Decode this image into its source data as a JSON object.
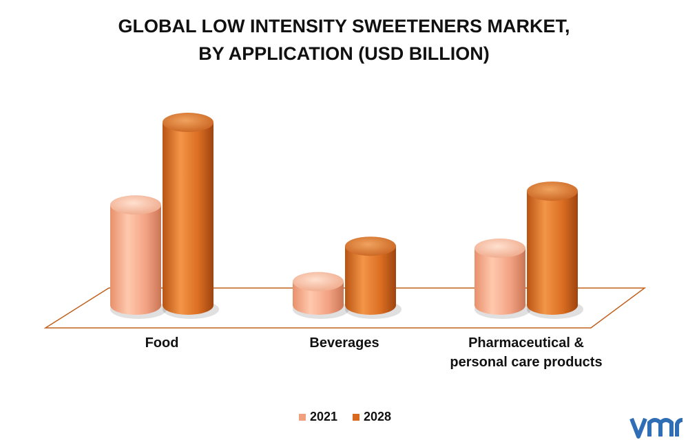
{
  "chart_data": {
    "type": "bar",
    "title_lines": [
      "GLOBAL LOW INTENSITY SWEETENERS MARKET,",
      "BY APPLICATION (USD BILLION)"
    ],
    "categories": [
      [
        "Food"
      ],
      [
        "Beverages"
      ],
      [
        "Pharmaceutical &",
        "personal care products"
      ]
    ],
    "series": [
      {
        "name": "2021",
        "values": [
          5.1,
          1.2,
          2.9
        ],
        "color": "#f0a07c"
      },
      {
        "name": "2028",
        "values": [
          9.3,
          3.0,
          5.8
        ],
        "color": "#d9691f"
      }
    ],
    "ylim": [
      0,
      10
    ],
    "grid": false,
    "legend_position": "bottom",
    "style": "3d-cylinder"
  },
  "logo": {
    "text": "vm",
    "color": "#2f6db5"
  }
}
